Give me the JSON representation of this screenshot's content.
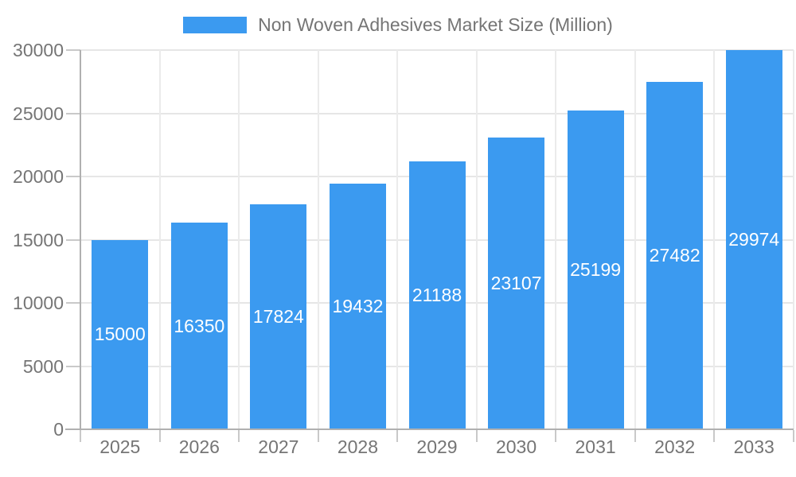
{
  "chart_data": {
    "type": "bar",
    "title": "Non Woven Adhesives Market Size (Million)",
    "legend": {
      "label": "Non Woven Adhesives Market Size (Million)",
      "position": "top"
    },
    "categories": [
      "2025",
      "2026",
      "2027",
      "2028",
      "2029",
      "2030",
      "2031",
      "2032",
      "2033"
    ],
    "values": [
      15000,
      16350,
      17824,
      19432,
      21188,
      23107,
      25199,
      27482,
      29974
    ],
    "bar_labels": [
      "15000",
      "16350",
      "17824",
      "19432",
      "21188",
      "23107",
      "25199",
      "27482",
      "29974"
    ],
    "xlabel": "",
    "ylabel": "",
    "ylim": [
      0,
      30000
    ],
    "yticks": [
      0,
      5000,
      10000,
      15000,
      20000,
      25000,
      30000
    ],
    "ytick_labels": [
      "0",
      "5000",
      "10000",
      "15000",
      "20000",
      "25000",
      "30000"
    ],
    "grid": true,
    "colors": {
      "bar": "#3B9AF0",
      "bar_label": "#FFFFFF",
      "axis_text": "#757575",
      "grid_line": "#E6E6E6",
      "grid_line_vertical": "#EBEBEB",
      "axis_line": "#B0B0B0",
      "tick": "#C9C9C9",
      "background": "#FFFFFF"
    }
  }
}
